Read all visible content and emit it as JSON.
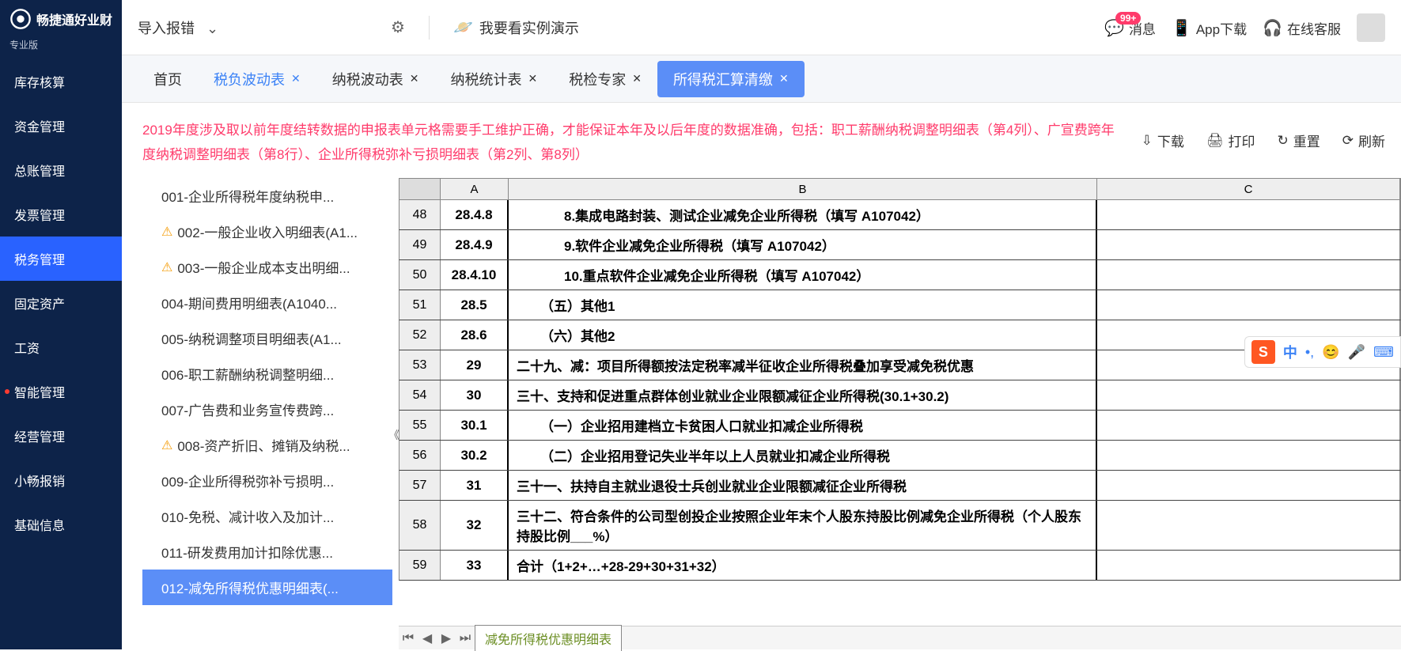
{
  "logo": {
    "name": "畅捷通好业财",
    "sub": "专业版"
  },
  "sidebar": {
    "items": [
      {
        "label": "库存核算"
      },
      {
        "label": "资金管理"
      },
      {
        "label": "总账管理"
      },
      {
        "label": "发票管理"
      },
      {
        "label": "税务管理"
      },
      {
        "label": "固定资产"
      },
      {
        "label": "工资"
      },
      {
        "label": "智能管理"
      },
      {
        "label": "经营管理"
      },
      {
        "label": "小畅报销"
      },
      {
        "label": "基础信息"
      }
    ],
    "active_index": 4,
    "red_dot_index": 7
  },
  "topbar": {
    "import_label": "导入报错",
    "demo_label": "我要看实例演示",
    "msg_label": "消息",
    "badge": "99+",
    "app_label": "App下载",
    "service_label": "在线客服"
  },
  "tabs": {
    "items": [
      {
        "label": "首页",
        "closable": false
      },
      {
        "label": "税负波动表",
        "closable": true,
        "blue_text": true
      },
      {
        "label": "纳税波动表",
        "closable": true
      },
      {
        "label": "纳税统计表",
        "closable": true
      },
      {
        "label": "税检专家",
        "closable": true
      },
      {
        "label": "所得税汇算清缴",
        "closable": true,
        "active": true
      }
    ]
  },
  "notice": "2019年度涉及取以前年度结转数据的申报表单元格需要手工维护正确，才能保证本年及以后年度的数据准确，包括：职工薪酬纳税调整明细表（第4列）、广宣费跨年度纳税调整明细表（第8行）、企业所得税弥补亏损明细表（第2列、第8列）",
  "toolbar": {
    "download": "下载",
    "print": "打印",
    "reset": "重置",
    "refresh": "刷新"
  },
  "tree": {
    "items": [
      {
        "label": "001-企业所得税年度纳税申..."
      },
      {
        "label": "002-一般企业收入明细表(A1...",
        "warn": true
      },
      {
        "label": "003-一般企业成本支出明细...",
        "warn": true
      },
      {
        "label": "004-期间费用明细表(A1040..."
      },
      {
        "label": "005-纳税调整项目明细表(A1..."
      },
      {
        "label": "006-职工薪酬纳税调整明细..."
      },
      {
        "label": "007-广告费和业务宣传费跨..."
      },
      {
        "label": "008-资产折旧、摊销及纳税...",
        "warn": true
      },
      {
        "label": "009-企业所得税弥补亏损明..."
      },
      {
        "label": "010-免税、减计收入及加计..."
      },
      {
        "label": "011-研发费用加计扣除优惠..."
      },
      {
        "label": "012-减免所得税优惠明细表(...",
        "active": true
      }
    ]
  },
  "sheet": {
    "cols": {
      "A": "A",
      "B": "B",
      "C": "C"
    },
    "rows": [
      {
        "n": "48",
        "a": "28.4.8",
        "b": "8.集成电路封装、测试企业减免企业所得税（填写 A107042）",
        "indent": 1
      },
      {
        "n": "49",
        "a": "28.4.9",
        "b": "9.软件企业减免企业所得税（填写 A107042）",
        "indent": 1
      },
      {
        "n": "50",
        "a": "28.4.10",
        "b": "10.重点软件企业减免企业所得税（填写 A107042）",
        "indent": 1
      },
      {
        "n": "51",
        "a": "28.5",
        "b": "（五）其他1",
        "indent": 2
      },
      {
        "n": "52",
        "a": "28.6",
        "b": "（六）其他2",
        "indent": 2
      },
      {
        "n": "53",
        "a": "29",
        "b": "二十九、减：项目所得额按法定税率减半征收企业所得税叠加享受减免税优惠"
      },
      {
        "n": "54",
        "a": "30",
        "b": "三十、支持和促进重点群体创业就业企业限额减征企业所得税(30.1+30.2)"
      },
      {
        "n": "55",
        "a": "30.1",
        "b": "（一）企业招用建档立卡贫困人口就业扣减企业所得税",
        "indent": 2
      },
      {
        "n": "56",
        "a": "30.2",
        "b": "（二）企业招用登记失业半年以上人员就业扣减企业所得税",
        "indent": 2
      },
      {
        "n": "57",
        "a": "31",
        "b": "三十一、扶持自主就业退役士兵创业就业企业限额减征企业所得税"
      },
      {
        "n": "58",
        "a": "32",
        "b": "三十二、符合条件的公司型创投企业按照企业年末个人股东持股比例减免企业所得税（个人股东持股比例___%）"
      },
      {
        "n": "59",
        "a": "33",
        "b": "合计（1+2+…+28-29+30+31+32）"
      }
    ],
    "tab_label": "减免所得税优惠明细表"
  },
  "ime": {
    "zh": "中"
  }
}
